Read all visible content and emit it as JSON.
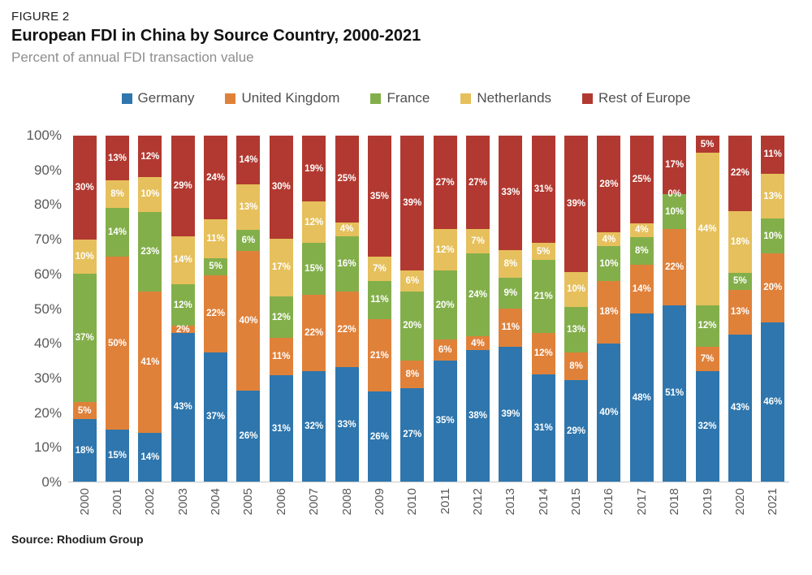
{
  "header": {
    "figure_label": "FIGURE 2",
    "title": "European FDI in China by Source Country, 2000-2021",
    "subtitle": "Percent of annual FDI transaction value"
  },
  "source": "Source: Rhodium Group",
  "chart_data": {
    "type": "bar",
    "variant": "stacked-100-percent",
    "title": "European FDI in China by Source Country, 2000-2021",
    "subtitle": "Percent of annual FDI transaction value",
    "xlabel": "",
    "ylabel": "",
    "ylim": [
      0,
      100
    ],
    "grid": false,
    "legend_position": "top",
    "axis_line_color": "#c9c9c9",
    "bar_label_color": "#ffffff",
    "categories": [
      "2000",
      "2001",
      "2002",
      "2003",
      "2004",
      "2005",
      "2006",
      "2007",
      "2008",
      "2009",
      "2010",
      "2011",
      "2012",
      "2013",
      "2014",
      "2015",
      "2016",
      "2017",
      "2018",
      "2019",
      "2020",
      "2021"
    ],
    "y_ticks": [
      "100%",
      "90%",
      "80%",
      "70%",
      "60%",
      "50%",
      "40%",
      "30%",
      "20%",
      "10%",
      "0%"
    ],
    "series": [
      {
        "name": "Germany",
        "color": "#2e76ad",
        "values": [
          18,
          15,
          14,
          43,
          37,
          26,
          31,
          32,
          33,
          26,
          27,
          35,
          38,
          39,
          31,
          29,
          40,
          48,
          51,
          32,
          43,
          46
        ]
      },
      {
        "name": "United Kingdom",
        "color": "#e0813a",
        "values": [
          5,
          50,
          41,
          2,
          22,
          40,
          11,
          22,
          22,
          21,
          8,
          6,
          4,
          11,
          12,
          8,
          18,
          14,
          22,
          7,
          13,
          20
        ]
      },
      {
        "name": "France",
        "color": "#83af4b",
        "values": [
          37,
          14,
          23,
          12,
          5,
          6,
          12,
          15,
          16,
          11,
          20,
          20,
          24,
          9,
          21,
          13,
          10,
          8,
          10,
          12,
          5,
          10
        ]
      },
      {
        "name": "Netherlands",
        "color": "#e6c05c",
        "values": [
          10,
          8,
          10,
          14,
          11,
          13,
          17,
          12,
          4,
          7,
          6,
          12,
          7,
          8,
          5,
          10,
          4,
          4,
          0,
          44,
          18,
          13
        ]
      },
      {
        "name": "Rest of Europe",
        "color": "#b23931",
        "values": [
          30,
          13,
          12,
          29,
          24,
          14,
          30,
          19,
          25,
          35,
          39,
          27,
          27,
          33,
          31,
          39,
          28,
          25,
          17,
          5,
          22,
          11
        ]
      }
    ]
  }
}
